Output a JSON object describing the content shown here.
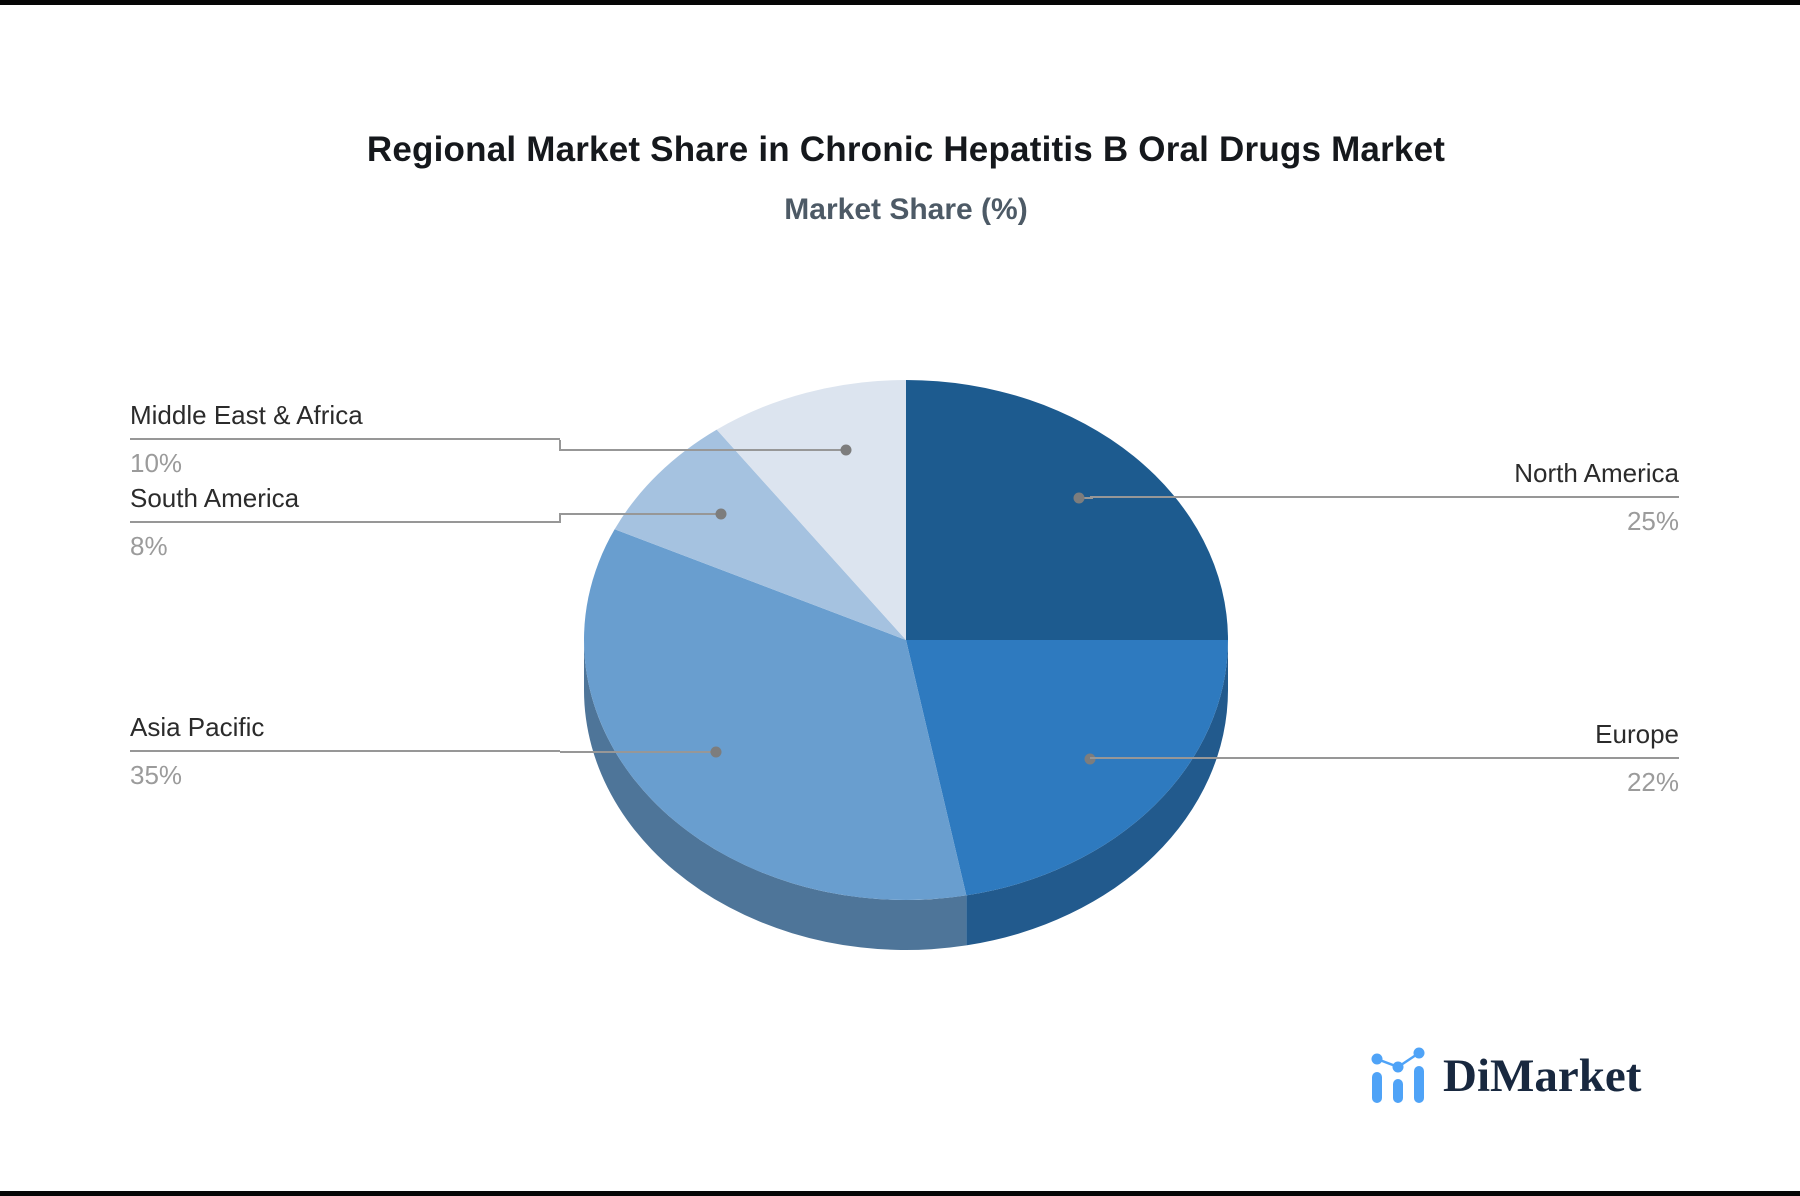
{
  "chart_data": {
    "type": "pie",
    "style": "3d-pie",
    "title": "Regional Market Share in Chronic Hepatitis B Oral Drugs Market",
    "subtitle": "Market Share (%)",
    "unit": "%",
    "direction": "clockwise",
    "start_angle": "12-o-clock",
    "legend_position": "none",
    "labeling": "callout-lines-with-dots",
    "series": [
      {
        "name": "North America",
        "value": 25,
        "label": "25%",
        "color": "#1D5B8F"
      },
      {
        "name": "Europe",
        "value": 22,
        "label": "22%",
        "color": "#2E7ABF"
      },
      {
        "name": "Asia Pacific",
        "value": 35,
        "label": "35%",
        "color": "#699ECF"
      },
      {
        "name": "South America",
        "value": 8,
        "label": "8%",
        "color": "#A5C2E0"
      },
      {
        "name": "Middle East & Africa",
        "value": 10,
        "label": "10%",
        "color": "#DCE4EF"
      }
    ],
    "callout_line_color": "#979797",
    "callout_dot_color": "#7d7d7d",
    "label_text_color": "#2b2b2b",
    "value_text_color": "#9b9b9b"
  },
  "branding": {
    "logo_text": "DiMarket",
    "logo_icon": "bar-chart-trend-icon",
    "icon_color": "#4FA3F7",
    "text_color": "#18283f"
  }
}
